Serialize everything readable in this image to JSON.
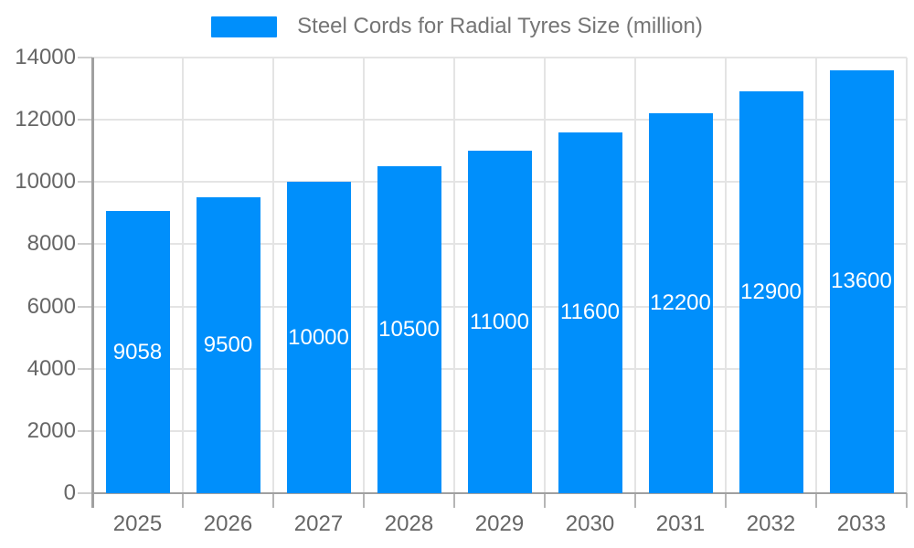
{
  "chart_data": {
    "type": "bar",
    "title": "Steel Cords for Radial Tyres Size (million)",
    "xlabel": "",
    "ylabel": "",
    "categories": [
      "2025",
      "2026",
      "2027",
      "2028",
      "2029",
      "2030",
      "2031",
      "2032",
      "2033"
    ],
    "values": [
      9058,
      9500,
      10000,
      10500,
      11000,
      11600,
      12200,
      12900,
      13600
    ],
    "show_data_labels": true,
    "ylim": [
      0,
      14000
    ],
    "yticks": [
      0,
      2000,
      4000,
      6000,
      8000,
      10000,
      12000,
      14000
    ],
    "grid": "horizontal-and-vertical",
    "legend_position": "top",
    "colors": {
      "bar": "#008FFB",
      "bar_label_text": "#ffffff",
      "axis_line": "#a0a0a0",
      "grid_line": "#e4e4e4",
      "tick_mark_y": "#cfcfcf",
      "tick_mark_x": "#b6b6b6",
      "axis_label_text": "#666666",
      "legend_text": "#757575",
      "background": "#ffffff"
    }
  }
}
